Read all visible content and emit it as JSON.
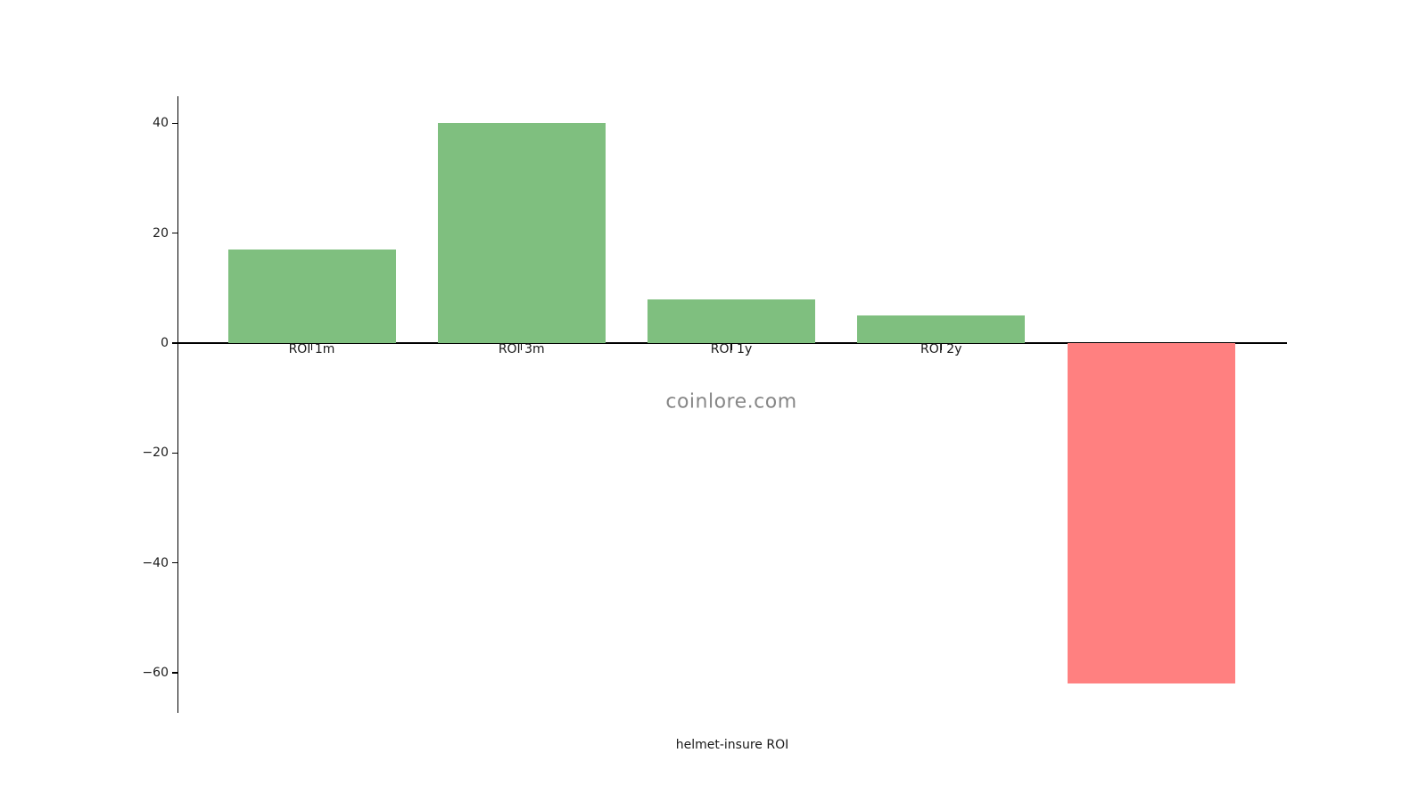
{
  "watermark": {
    "text": "coinlore.com",
    "color": "#878787"
  },
  "chart_data": {
    "type": "bar",
    "title": "",
    "xlabel": "helmet-insure ROI",
    "ylabel": "",
    "categories": [
      "ROI 1m",
      "ROI 3m",
      "ROI 1y",
      "ROI 2y",
      ""
    ],
    "values": [
      17,
      40,
      8,
      5,
      -62
    ],
    "positive_color": "#7fbf7f",
    "negative_color": "#ff8080",
    "yticks": [
      40,
      20,
      0,
      -20,
      -40,
      -60
    ],
    "ytick_labels": [
      "40",
      "20",
      "0",
      "−20",
      "−40",
      "−60"
    ],
    "ylim": [
      -67,
      45
    ],
    "grid": false,
    "legend_position": "none",
    "axis_color": "#000000",
    "text_color": "#1a1a1a"
  }
}
